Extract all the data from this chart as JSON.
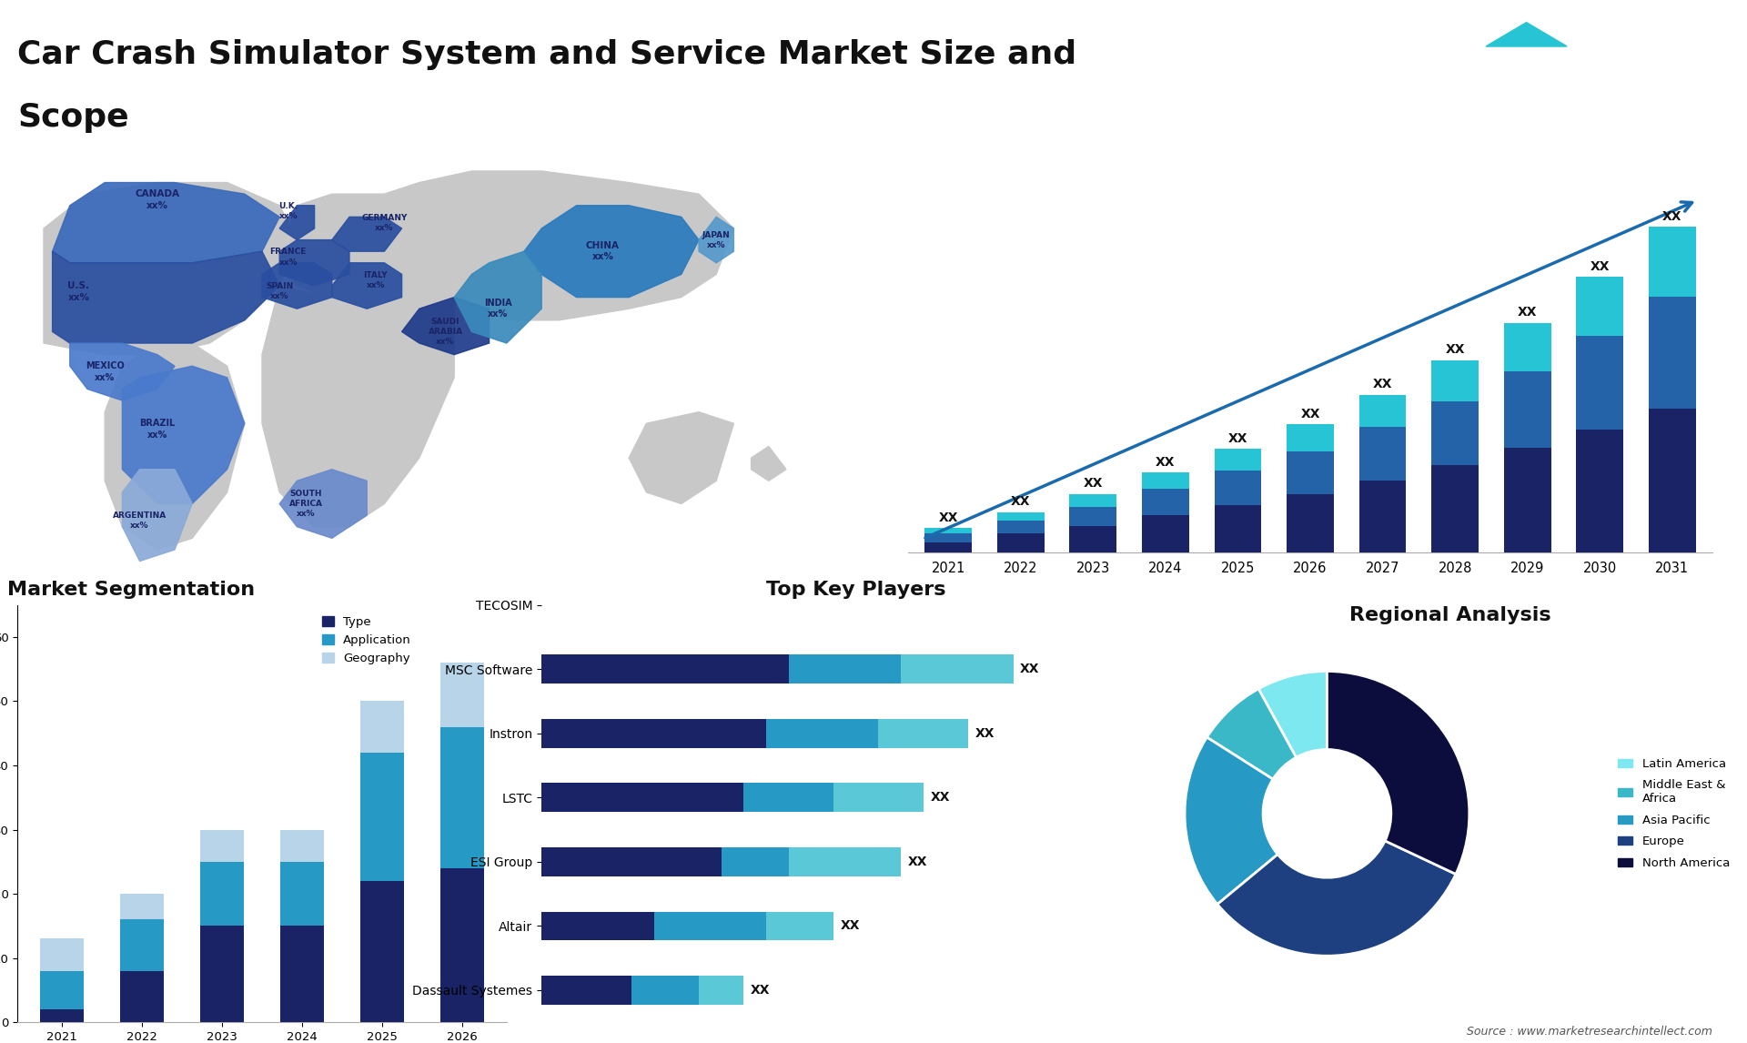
{
  "title_line1": "Car Crash Simulator System and Service Market Size and",
  "title_line2": "Scope",
  "title_fontsize": 26,
  "background_color": "#ffffff",
  "bar_chart_years": [
    "2021",
    "2022",
    "2023",
    "2024",
    "2025",
    "2026",
    "2027",
    "2028",
    "2029",
    "2030",
    "2031"
  ],
  "bar_chart_seg1": [
    1.0,
    1.8,
    2.5,
    3.5,
    4.5,
    5.5,
    6.8,
    8.2,
    9.8,
    11.5,
    13.5
  ],
  "bar_chart_seg2": [
    0.8,
    1.2,
    1.8,
    2.5,
    3.2,
    4.0,
    5.0,
    6.0,
    7.2,
    8.8,
    10.5
  ],
  "bar_chart_seg3": [
    0.5,
    0.8,
    1.2,
    1.5,
    2.0,
    2.5,
    3.0,
    3.8,
    4.5,
    5.5,
    6.5
  ],
  "bar_colors": [
    "#1a2366",
    "#2563a8",
    "#26c4d4"
  ],
  "bar_label": "XX",
  "segmentation_years": [
    "2021",
    "2022",
    "2023",
    "2024",
    "2025",
    "2026"
  ],
  "seg_type": [
    2,
    8,
    15,
    15,
    22,
    24
  ],
  "seg_application": [
    6,
    8,
    10,
    10,
    20,
    22
  ],
  "seg_geography": [
    5,
    4,
    5,
    5,
    8,
    10
  ],
  "seg_colors": [
    "#1a2366",
    "#2699c4",
    "#b8d4e8"
  ],
  "seg_legend": [
    "Type",
    "Application",
    "Geography"
  ],
  "top_players": [
    "TECOSIM",
    "MSC Software",
    "Instron",
    "LSTC",
    "ESI Group",
    "Altair",
    "Dassault Systemes"
  ],
  "top_players_dark": [
    0,
    5.5,
    5.0,
    4.5,
    4.0,
    2.5,
    2.0
  ],
  "top_players_mid": [
    0,
    2.5,
    2.5,
    2.0,
    1.5,
    2.5,
    1.5
  ],
  "top_players_light": [
    0,
    2.5,
    2.0,
    2.0,
    2.5,
    1.5,
    1.0
  ],
  "tp_color_dark": "#1a2366",
  "tp_color_mid": "#2699c4",
  "tp_color_light": "#5bc8d8",
  "tp_label": "XX",
  "donut_sizes": [
    8,
    8,
    20,
    32,
    32
  ],
  "donut_colors": [
    "#7ee8f0",
    "#3ab8c8",
    "#2699c4",
    "#1e4080",
    "#0d0d3d"
  ],
  "donut_labels": [
    "Latin America",
    "Middle East &\nAfrica",
    "Asia Pacific",
    "Europe",
    "North America"
  ],
  "source_text": "Source : www.marketresearchintellect.com",
  "section_titles": {
    "segmentation": "Market Segmentation",
    "top_players": "Top Key Players",
    "regional": "Regional Analysis"
  },
  "map_bg_color": "#d0d0d0",
  "map_continent_color": "#c8c8c8",
  "map_us_color": "#2a4fa0",
  "map_canada_color": "#3a6abb",
  "map_latam_color": "#4a7acc",
  "map_latam_light": "#8aaad8",
  "map_europe_dark": "#1e3a8a",
  "map_europe_mid": "#2a4fa0",
  "map_asia_dark": "#1e5fa0",
  "map_asia_light": "#5599cc",
  "logo_bg": "#1a2366",
  "logo_triangle": "#26c4d4",
  "logo_text_color": "#ffffff"
}
